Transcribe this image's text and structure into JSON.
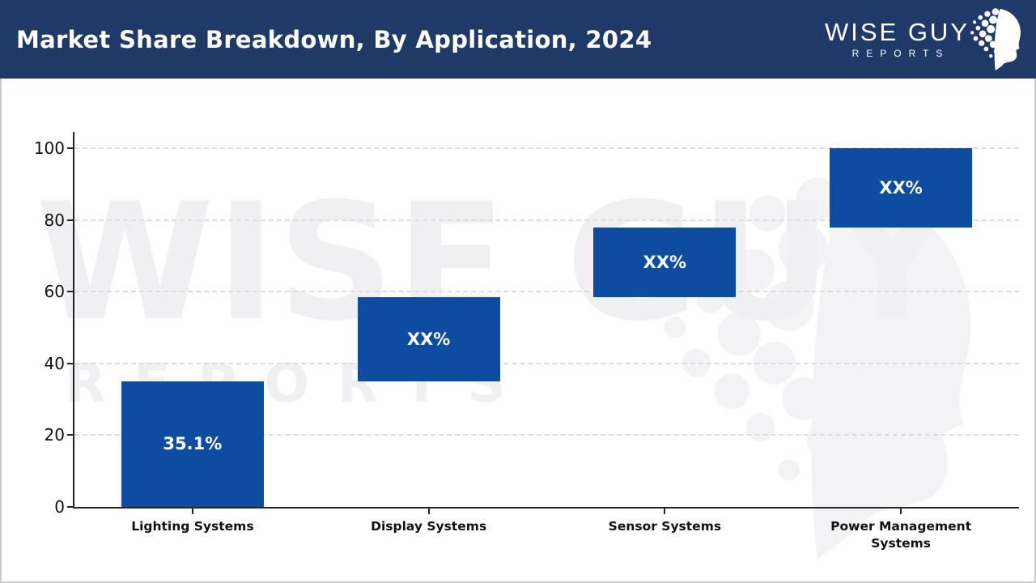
{
  "header": {
    "title": "Market Share Breakdown, By Application, 2024",
    "logo": {
      "wordmark": "WISE GUY",
      "subtext": "REPORTS"
    }
  },
  "watermark": {
    "wordmark": "WISE GUY",
    "subtext": "REPORTS"
  },
  "theme": {
    "header_bg": "#1f3a67",
    "bar_color": "#0d4ca0",
    "watermark_color": "#f0f0f2",
    "grid_color": "#dcdcdc",
    "axis_color": "#262626",
    "text_color": "#111111",
    "frame_color": "#cccccc",
    "bar_label_color": "#ffffff"
  },
  "chart_data": {
    "type": "bar",
    "subtype": "waterfall",
    "title": "Market Share Breakdown, By Application, 2024",
    "categories": [
      "Lighting Systems",
      "Display Systems",
      "Sensor Systems",
      "Power Management Systems"
    ],
    "segments": [
      {
        "category": "Lighting Systems",
        "start": 0,
        "end": 35.1,
        "label": "35.1%"
      },
      {
        "category": "Display Systems",
        "start": 35.1,
        "end": 58.5,
        "label": "XX%"
      },
      {
        "category": "Sensor Systems",
        "start": 58.5,
        "end": 78,
        "label": "XX%"
      },
      {
        "category": "Power Management Systems",
        "start": 78,
        "end": 100,
        "label": "XX%"
      }
    ],
    "yticks": [
      0,
      20,
      40,
      60,
      80,
      100
    ],
    "ylim": [
      0,
      100
    ],
    "xlabel": "",
    "ylabel": "",
    "grid": "horizontal-dashed",
    "legend": "none",
    "bar_labels_inside": true
  }
}
